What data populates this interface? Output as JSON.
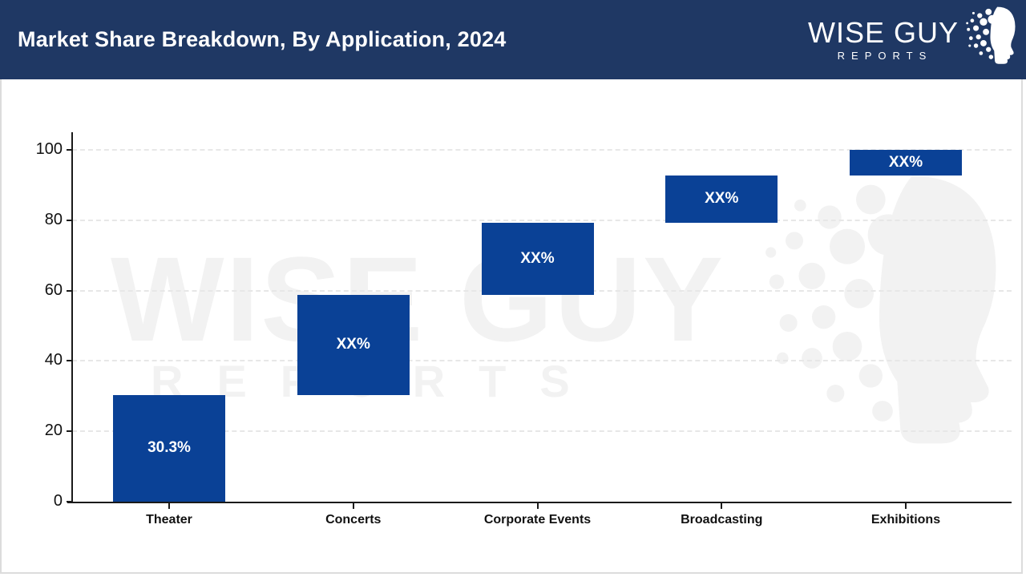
{
  "header": {
    "title": "Market Share Breakdown, By Application, 2024",
    "brand": {
      "line1": "WISE GUY",
      "line2": "REPORTS"
    }
  },
  "watermark": {
    "line1": "WISE GUY",
    "line2": "REPORTS"
  },
  "colors": {
    "header_bg": "#1f3864",
    "bar": "#0a4196",
    "grid": "#e7e7e7",
    "axis": "#1a1a1a",
    "watermark": "#f2f2f2",
    "bar_label": "#ffffff"
  },
  "chart_data": {
    "type": "bar",
    "subtype": "waterfall",
    "title": "Market Share Breakdown, By Application, 2024",
    "categories": [
      "Theater",
      "Concerts",
      "Corporate Events",
      "Broadcasting",
      "Exhibitions"
    ],
    "segments": [
      {
        "category": "Theater",
        "start": 0,
        "end": 30.3,
        "label": "30.3%"
      },
      {
        "category": "Concerts",
        "start": 30.3,
        "end": 58.8,
        "label": "XX%"
      },
      {
        "category": "Corporate Events",
        "start": 58.8,
        "end": 79.3,
        "label": "XX%"
      },
      {
        "category": "Broadcasting",
        "start": 79.3,
        "end": 92.8,
        "label": "XX%"
      },
      {
        "category": "Exhibitions",
        "start": 92.8,
        "end": 100,
        "label": "XX%"
      }
    ],
    "xlabel": "",
    "ylabel": "",
    "ylim": [
      0,
      100
    ],
    "yticks": [
      0,
      20,
      40,
      60,
      80,
      100
    ],
    "grid": "horizontal-dashed",
    "legend": null
  }
}
